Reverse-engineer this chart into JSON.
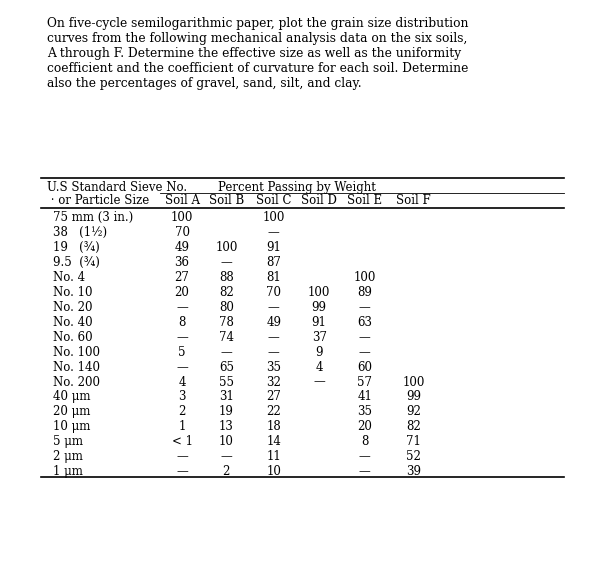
{
  "intro_text": "On five-cycle semilogarithmic paper, plot the grain size distribution\ncurves from the following mechanical analysis data on the six soils,\nA through F. Determine the effective size as well as the uniformity\ncoefficient and the coefficient of curvature for each soil. Determine\nalso the percentages of gravel, sand, silt, and clay.",
  "col1_header1": "U.S Standard Sieve No.",
  "col1_header2": " · or Particle Size",
  "percent_header": "Percent Passing by Weight",
  "soil_headers": [
    "Soil A",
    "Soil B",
    "Soil C",
    "Soil D",
    "Soil E",
    "Soil F"
  ],
  "rows": [
    [
      "75 mm (3 in.)",
      "100",
      "",
      "100",
      "",
      "",
      ""
    ],
    [
      "38   (1½)",
      "70",
      "",
      "—",
      "",
      "",
      ""
    ],
    [
      "19   (¾)",
      "49",
      "100",
      "91",
      "",
      "",
      ""
    ],
    [
      "9.5  (¾)",
      "36",
      "—",
      "87",
      "",
      "",
      ""
    ],
    [
      "No. 4",
      "27",
      "88",
      "81",
      "",
      "100",
      ""
    ],
    [
      "No. 10",
      "20",
      "82",
      "70",
      "100",
      "89",
      ""
    ],
    [
      "No. 20",
      "—",
      "80",
      "—",
      "99",
      "—",
      ""
    ],
    [
      "No. 40",
      "8",
      "78",
      "49",
      "91",
      "63",
      ""
    ],
    [
      "No. 60",
      "—",
      "74",
      "—",
      "37",
      "—",
      ""
    ],
    [
      "No. 100",
      "5",
      "—",
      "—",
      "9",
      "—",
      ""
    ],
    [
      "No. 140",
      "—",
      "65",
      "35",
      "4",
      "60",
      ""
    ],
    [
      "No. 200",
      "4",
      "55",
      "32",
      "—",
      "57",
      "100"
    ],
    [
      "40 μm",
      "3",
      "31",
      "27",
      "",
      "41",
      "99"
    ],
    [
      "20 μm",
      "2",
      "19",
      "22",
      "",
      "35",
      "92"
    ],
    [
      "10 μm",
      "1",
      "13",
      "18",
      "",
      "20",
      "82"
    ],
    [
      "5 μm",
      "< 1",
      "10",
      "14",
      "",
      "8",
      "71"
    ],
    [
      "2 μm",
      "—",
      "—",
      "11",
      "",
      "—",
      "52"
    ],
    [
      "1 μm",
      "—",
      "2",
      "10",
      "",
      "—",
      "39"
    ]
  ]
}
